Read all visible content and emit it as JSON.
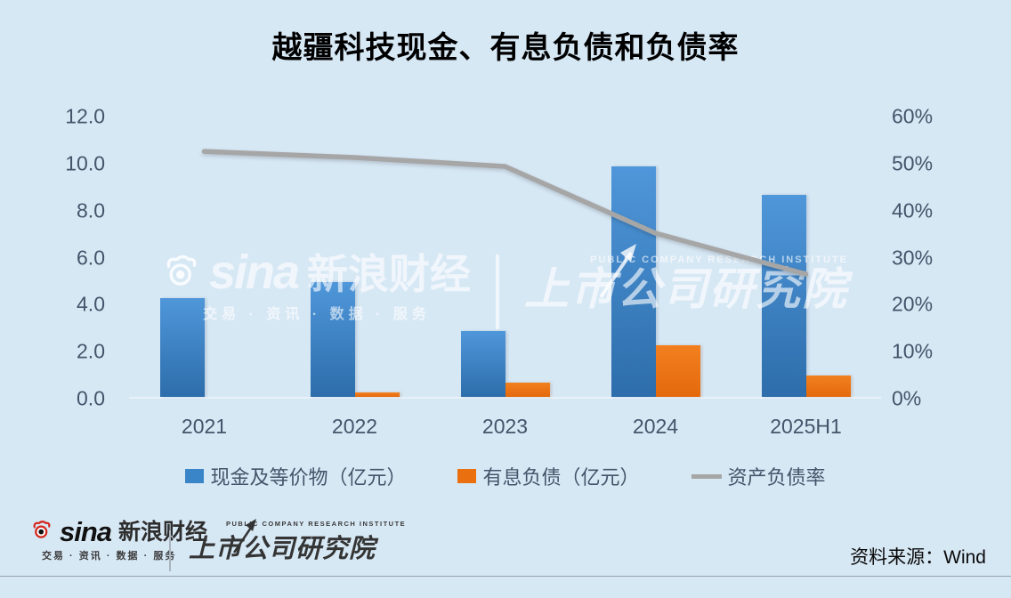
{
  "title": "越疆科技现金、有息负债和负债率",
  "chart_data": {
    "type": "bar+line",
    "categories": [
      "2021",
      "2022",
      "2023",
      "2024",
      "2025H1"
    ],
    "series": [
      {
        "name": "现金及等价物（亿元）",
        "type": "bar",
        "axis": "left",
        "color": "#3a85c8",
        "values": [
          4.2,
          4.9,
          2.8,
          9.8,
          8.6
        ]
      },
      {
        "name": "有息负债（亿元）",
        "type": "bar",
        "axis": "left",
        "color": "#ea700f",
        "values": [
          0,
          0.2,
          0.6,
          2.2,
          0.9
        ]
      },
      {
        "name": "资产负债率",
        "type": "line",
        "axis": "right",
        "color": "#a6a6a6",
        "values": [
          52.6,
          51.3,
          49.4,
          35.2,
          26.5
        ]
      }
    ],
    "left_axis": {
      "min": 0,
      "max": 12,
      "ticks": [
        "12.0",
        "10.0",
        "8.0",
        "6.0",
        "4.0",
        "2.0",
        "0.0"
      ]
    },
    "right_axis": {
      "min": 0,
      "max": 60,
      "ticks": [
        "60%",
        "50%",
        "40%",
        "30%",
        "20%",
        "10%",
        "0%"
      ]
    },
    "legend_position": "bottom",
    "grid": false
  },
  "watermark": {
    "sina_brand": "sina",
    "sina_name": "新浪财经",
    "sina_tagline": "交易 · 资讯 · 数据 · 服务",
    "pcri_english": "PUBLIC COMPANY RESEARCH INSTITUTE",
    "pcri_name": "上市公司研究院"
  },
  "footer": {
    "sina_brand": "sina",
    "sina_name": "新浪财经",
    "sina_tagline": "交易 · 资讯 · 数据 · 服务",
    "pcri_english": "PUBLIC COMPANY RESEARCH INSTITUTE",
    "pcri_name": "上市公司研究院",
    "source": "资料来源：Wind"
  },
  "colors": {
    "background": "#d7e8f5",
    "bar_cash_top": "#4f97da",
    "bar_cash_bottom": "#2d6dab",
    "bar_debt_top": "#f2801f",
    "bar_debt_bottom": "#e4690d",
    "line": "#a6a6a6",
    "axis_text": "#44546a",
    "title_text": "#000000"
  }
}
